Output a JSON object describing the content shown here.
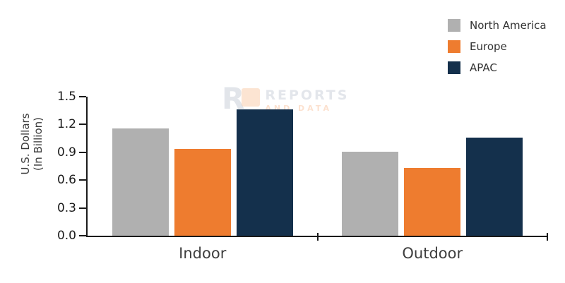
{
  "chart_data": {
    "type": "bar",
    "title": "",
    "categories": [
      "Indoor",
      "Outdoor"
    ],
    "series": [
      {
        "name": "North America",
        "color": "#b0b0b0",
        "values": [
          1.16,
          0.91
        ]
      },
      {
        "name": "Europe",
        "color": "#ee7c2f",
        "values": [
          0.94,
          0.73
        ]
      },
      {
        "name": "APAC",
        "color": "#14304c",
        "values": [
          1.36,
          1.06
        ]
      }
    ],
    "xlabel": "",
    "ylabel_line1": "U.S. Dollars",
    "ylabel_line2": "(In Billion)",
    "ylim": [
      0,
      1.5
    ],
    "ytick_labels": [
      "0.0",
      "0.3",
      "0.6",
      "0.9",
      "1.2",
      "1.5"
    ],
    "grid": false,
    "legend_position": "top-right"
  },
  "watermark": {
    "logo_letter": "R",
    "line1": "REPORTS",
    "line2": "AND DATA"
  },
  "colors": {
    "axis": "#1a1a1a",
    "tick_label": "#1a1a1a",
    "category_label": "#3d3d3d",
    "legend_label": "#333333",
    "background": "#ffffff"
  }
}
